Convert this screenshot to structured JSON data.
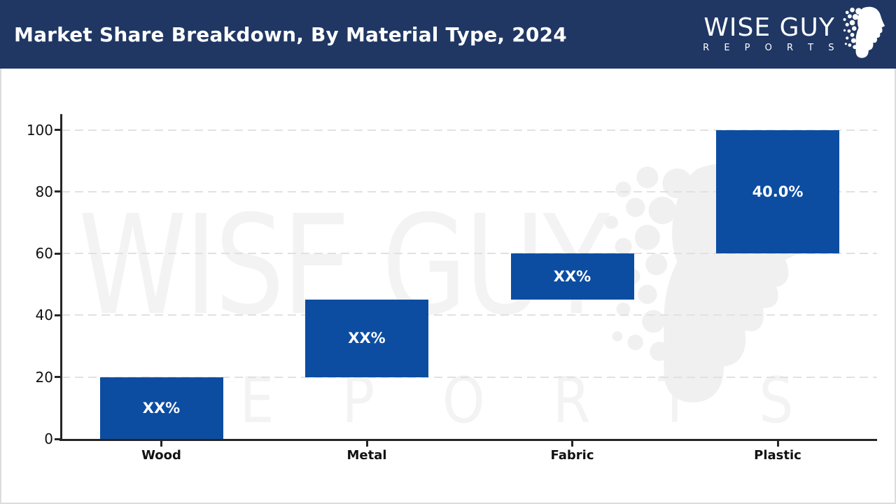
{
  "header": {
    "title": "Market Share Breakdown, By Material Type, 2024",
    "logo": {
      "line1": "WISE GUY",
      "line2": "R E P O R T S"
    }
  },
  "watermark": {
    "line1": "WISE GUY",
    "line2": "R E P O R T S"
  },
  "colors": {
    "header_bg": "#203764",
    "bar": "#0C4DA2",
    "bar_label": "#FFFFFF",
    "axis": "#262626",
    "gridline": "#E1E1E1",
    "tick_label": "#111111",
    "watermark": "#F3F3F3"
  },
  "chart_data": {
    "type": "bar",
    "subtype": "waterfall",
    "title": "Market Share Breakdown, By Material Type, 2024",
    "categories": [
      "Wood",
      "Metal",
      "Fabric",
      "Plastic"
    ],
    "segments": [
      {
        "category": "Wood",
        "start": 0,
        "end": 20,
        "value": 20,
        "label": "XX%"
      },
      {
        "category": "Metal",
        "start": 20,
        "end": 45,
        "value": 25,
        "label": "XX%"
      },
      {
        "category": "Fabric",
        "start": 45,
        "end": 60,
        "value": 15,
        "label": "XX%"
      },
      {
        "category": "Plastic",
        "start": 60,
        "end": 100,
        "value": 40,
        "label": "40.0%"
      }
    ],
    "yticks": [
      0,
      20,
      40,
      60,
      80,
      100
    ],
    "ylim": [
      0,
      105
    ],
    "xlabel": "",
    "ylabel": "",
    "grid": "horizontal-dashed",
    "legend": "none"
  }
}
